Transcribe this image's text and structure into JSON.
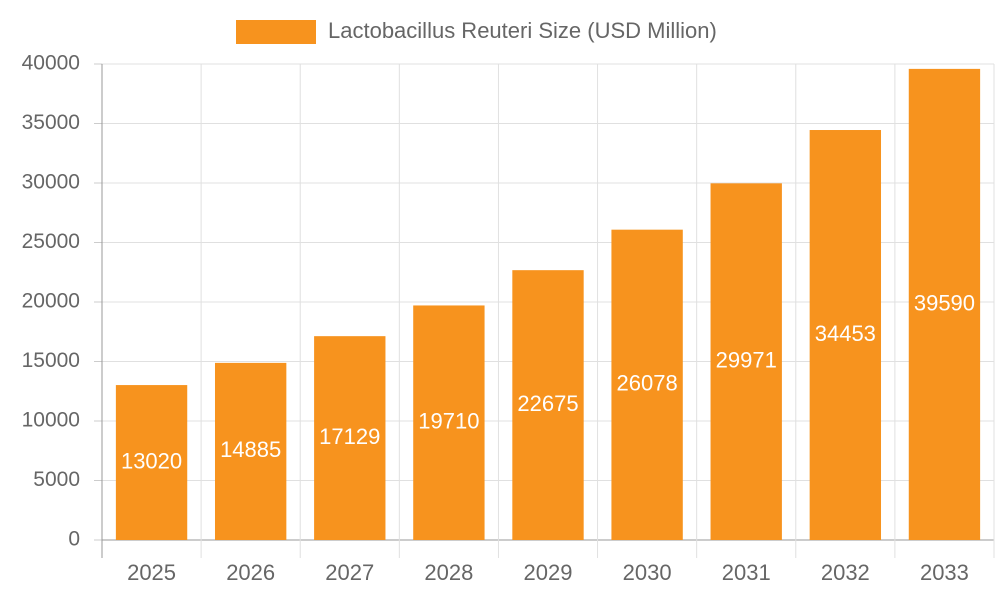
{
  "chart_data": {
    "type": "bar",
    "categories": [
      "2025",
      "2026",
      "2027",
      "2028",
      "2029",
      "2030",
      "2031",
      "2032",
      "2033"
    ],
    "series": [
      {
        "name": "Lactobacillus Reuteri Size (USD Million)",
        "color": "#f7931e",
        "values": [
          13020,
          14885,
          17129,
          19710,
          22675,
          26078,
          29971,
          34453,
          39590
        ]
      }
    ],
    "ylim": [
      0,
      40000
    ],
    "yticks": [
      0,
      5000,
      10000,
      15000,
      20000,
      25000,
      30000,
      35000,
      40000
    ],
    "grid": true,
    "legend": "top",
    "data_labels": true
  }
}
